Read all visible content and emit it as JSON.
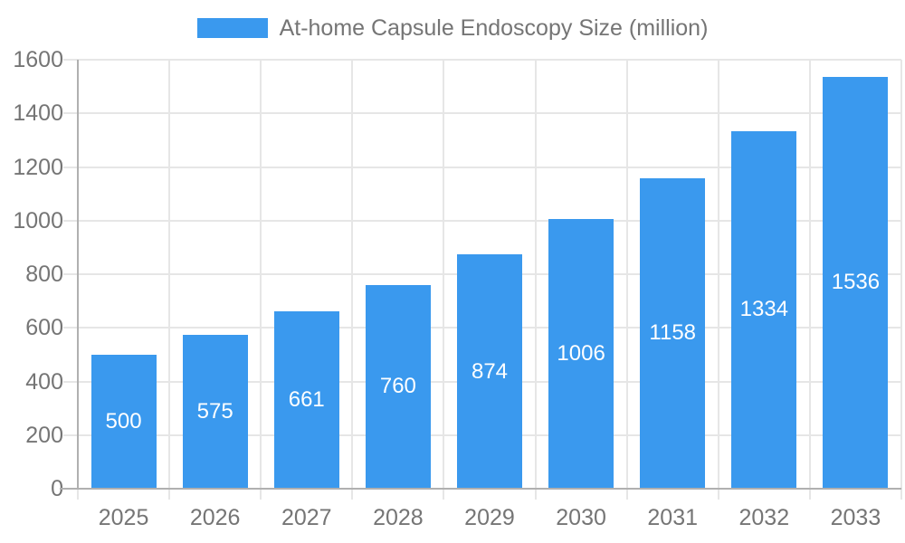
{
  "legend": {
    "label": "At-home Capsule Endoscopy Size (million)"
  },
  "chart_data": {
    "type": "bar",
    "title": "At-home Capsule Endoscopy Size (million)",
    "categories": [
      "2025",
      "2026",
      "2027",
      "2028",
      "2029",
      "2030",
      "2031",
      "2032",
      "2033"
    ],
    "values": [
      500,
      575,
      661,
      760,
      874,
      1006,
      1158,
      1334,
      1536
    ],
    "value_labels": [
      "500",
      "575",
      "661",
      "760",
      "874",
      "1006",
      "1158",
      "1334",
      "1536"
    ],
    "series": [
      {
        "name": "At-home Capsule Endoscopy Size (million)",
        "values": [
          500,
          575,
          661,
          760,
          874,
          1006,
          1158,
          1334,
          1536
        ]
      }
    ],
    "xlabel": "",
    "ylabel": "",
    "ylim": [
      0,
      1600
    ],
    "yticks": [
      0,
      200,
      400,
      600,
      800,
      1000,
      1200,
      1400,
      1600
    ],
    "grid": true,
    "legend_position": "top-center",
    "value_labels_position": "inside-center",
    "colors": {
      "bar": "#3a99ee",
      "value_text": "#ffffff",
      "axis": "#b0b0b0",
      "grid": "#e6e6e6",
      "text": "#757575",
      "background": "#ffffff"
    }
  }
}
